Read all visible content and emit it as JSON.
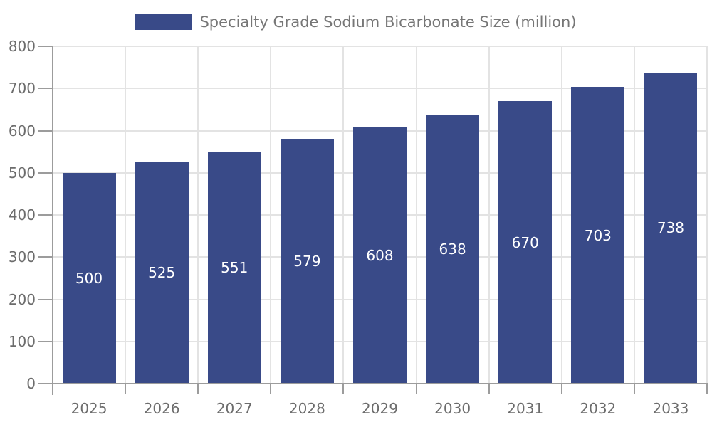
{
  "chart_data": {
    "type": "bar",
    "title": "Specialty Grade Sodium Bicarbonate Size (million)",
    "legend_label": "Specialty Grade Sodium Bicarbonate Size (million)",
    "legend_position": "top",
    "categories": [
      "2025",
      "2026",
      "2027",
      "2028",
      "2029",
      "2030",
      "2031",
      "2032",
      "2033"
    ],
    "values": [
      500,
      525,
      551,
      579,
      608,
      638,
      670,
      703,
      738
    ],
    "xlabel": "",
    "ylabel": "",
    "ylim": [
      0,
      800
    ],
    "y_ticks": [
      0,
      100,
      200,
      300,
      400,
      500,
      600,
      700,
      800
    ],
    "grid": true,
    "colors": {
      "bar": "#394a88",
      "bar_label": "#ffffff",
      "grid": "#e3e3e3",
      "axis": "#9c9c9c",
      "tick_label": "#6c6c6c",
      "legend_text": "#767676",
      "background": "#ffffff"
    }
  }
}
